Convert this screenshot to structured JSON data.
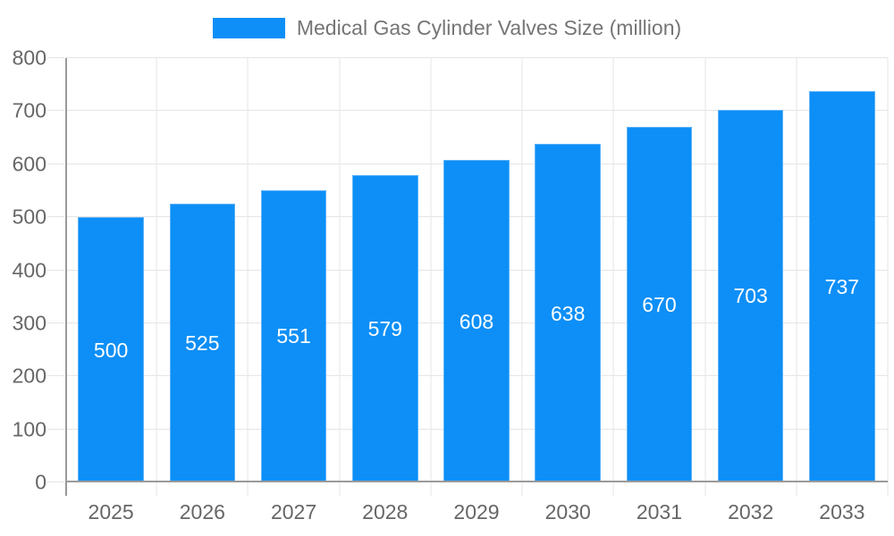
{
  "legend": {
    "label": "Medical Gas Cylinder Valves Size (million)"
  },
  "chart_data": {
    "type": "bar",
    "title": "Medical Gas Cylinder Valves Size (million)",
    "categories": [
      "2025",
      "2026",
      "2027",
      "2028",
      "2029",
      "2030",
      "2031",
      "2032",
      "2033"
    ],
    "values": [
      500,
      525,
      551,
      579,
      608,
      638,
      670,
      703,
      737
    ],
    "yticks": [
      0,
      100,
      200,
      300,
      400,
      500,
      600,
      700,
      800
    ],
    "ylim": [
      0,
      800
    ],
    "xlabel": "",
    "ylabel": "",
    "grid": true,
    "legend_position": "top",
    "value_label_position": "center-inside"
  },
  "colors": {
    "bar": "#0d8ff7",
    "bar_border": "#5eb3f8",
    "grid": "#e5e5e5",
    "axis": "#9a9a9a",
    "tick_label": "#666666",
    "legend_label": "#757575",
    "value_label": "#ffffff"
  }
}
